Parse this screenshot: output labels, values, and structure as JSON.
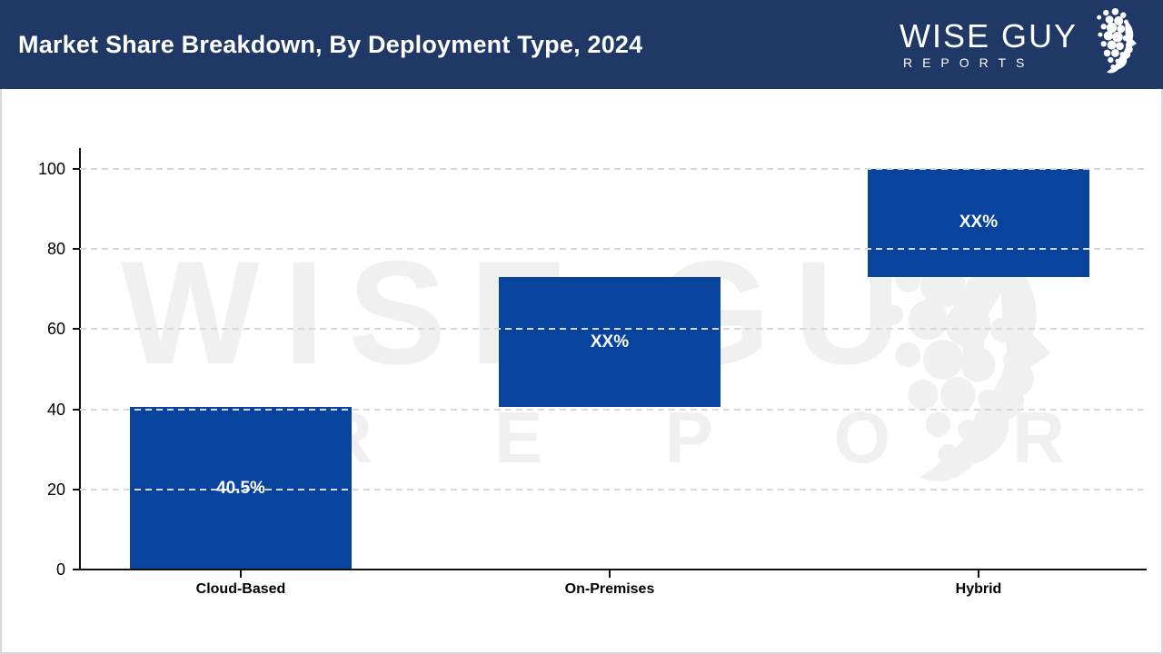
{
  "header": {
    "title": "Market Share Breakdown, By Deployment Type, 2024",
    "logo": {
      "line1": "WISE GUY",
      "line2": "REPORTS"
    }
  },
  "watermark": {
    "line1": "WISE GUY",
    "line2": "R E P O R T S"
  },
  "colors": {
    "header_bg": "#1f3865",
    "bar": "#08449e",
    "grid": "#d9d9d9",
    "axis": "#111111",
    "bar_label": "#ffffff",
    "watermark": "#f0f0f0",
    "tick_text": "#000000"
  },
  "chart_data": {
    "type": "bar",
    "subtype": "floating-waterfall",
    "title": "Market Share Breakdown, By Deployment Type, 2024",
    "categories": [
      "Cloud-Based",
      "On-Premises",
      "Hybrid"
    ],
    "segments": [
      {
        "category": "Cloud-Based",
        "start": 0,
        "end": 40.5,
        "value": 40.5,
        "label": "40.5%"
      },
      {
        "category": "On-Premises",
        "start": 40.5,
        "end": 73,
        "value": 32.5,
        "label": "XX%"
      },
      {
        "category": "Hybrid",
        "start": 73,
        "end": 100,
        "value": 27,
        "label": "XX%"
      }
    ],
    "values": [
      40.5,
      32.5,
      27
    ],
    "bar_labels": [
      "40.5%",
      "XX%",
      "XX%"
    ],
    "xlabel": "",
    "ylabel": "",
    "ylim": [
      0,
      100
    ],
    "yticks": [
      0,
      20,
      40,
      60,
      80,
      100
    ],
    "grid": "horizontal-dashed",
    "legend": "none"
  }
}
